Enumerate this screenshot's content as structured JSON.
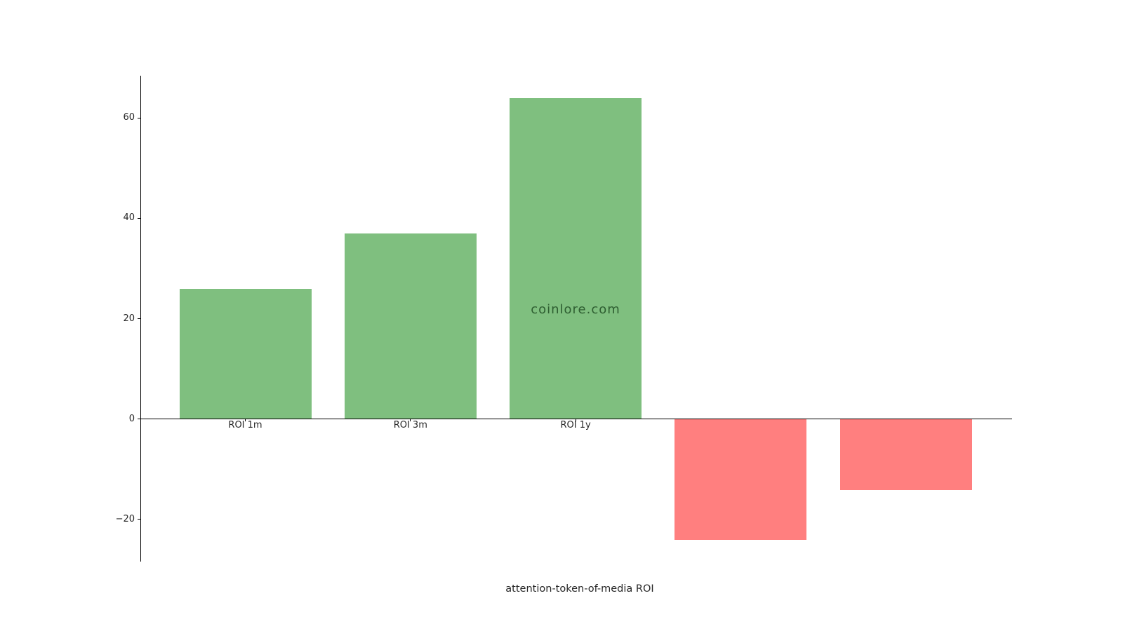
{
  "page": {
    "background": "#ffffff"
  },
  "chart_data": {
    "type": "bar",
    "title": "attention-token-of-media ROI",
    "watermark": "coinlore.com",
    "categories": [
      "ROI 1m",
      "ROI 3m",
      "ROI 1y",
      "",
      ""
    ],
    "values": [
      26,
      37,
      64,
      -24,
      -14
    ],
    "yticks": [
      60,
      40,
      20,
      0,
      -20
    ],
    "ytick_labels": [
      "60",
      "40",
      "20",
      "0",
      "−20"
    ],
    "ylim": [
      -28.4,
      68.4
    ],
    "xlabel": "attention-token-of-media ROI",
    "grid": false,
    "legend": "none",
    "colors": {
      "positive_bar": "#7fbf7f",
      "negative_bar": "#ff7f7f",
      "axis": "#000000",
      "tick_label": "#262626",
      "title": "#262626",
      "watermark": "#2e5e31"
    }
  }
}
